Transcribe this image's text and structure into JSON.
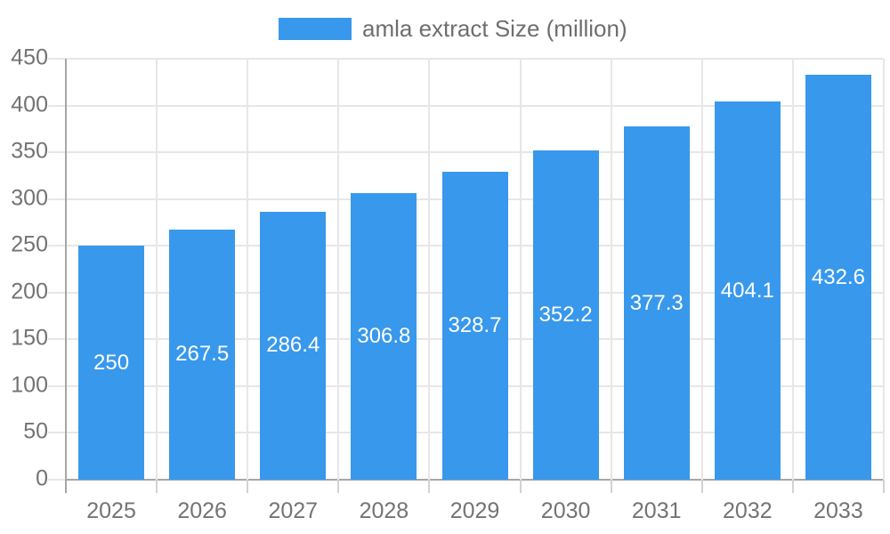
{
  "chart_data": {
    "type": "bar",
    "legend_label": "amla extract Size (million)",
    "title": "",
    "xlabel": "",
    "ylabel": "",
    "categories": [
      "2025",
      "2026",
      "2027",
      "2028",
      "2029",
      "2030",
      "2031",
      "2032",
      "2033"
    ],
    "series": [
      {
        "name": "amla extract Size (million)",
        "values": [
          250,
          267.5,
          286.4,
          306.8,
          328.7,
          352.2,
          377.3,
          404.1,
          432.6
        ]
      }
    ],
    "values": [
      250,
      267.5,
      286.4,
      306.8,
      328.7,
      352.2,
      377.3,
      404.1,
      432.6
    ],
    "value_labels": [
      "250",
      "267.5",
      "286.4",
      "306.8",
      "328.7",
      "352.2",
      "377.3",
      "404.1",
      "432.6"
    ],
    "ylim": [
      0,
      450
    ],
    "y_ticks": [
      0,
      50,
      100,
      150,
      200,
      250,
      300,
      350,
      400,
      450
    ],
    "grid": true,
    "legend_position": "top-center",
    "bar_label_position": "inside-middle"
  },
  "colors": {
    "bar": "#3898ec",
    "grid": "#e7e7e7",
    "axis": "#a6a6a6",
    "minor_tick": "#d2d2d2",
    "axis_text": "#737373",
    "legend_text": "#6e6e6e",
    "value_label": "#ffffff",
    "background": "#ffffff"
  }
}
